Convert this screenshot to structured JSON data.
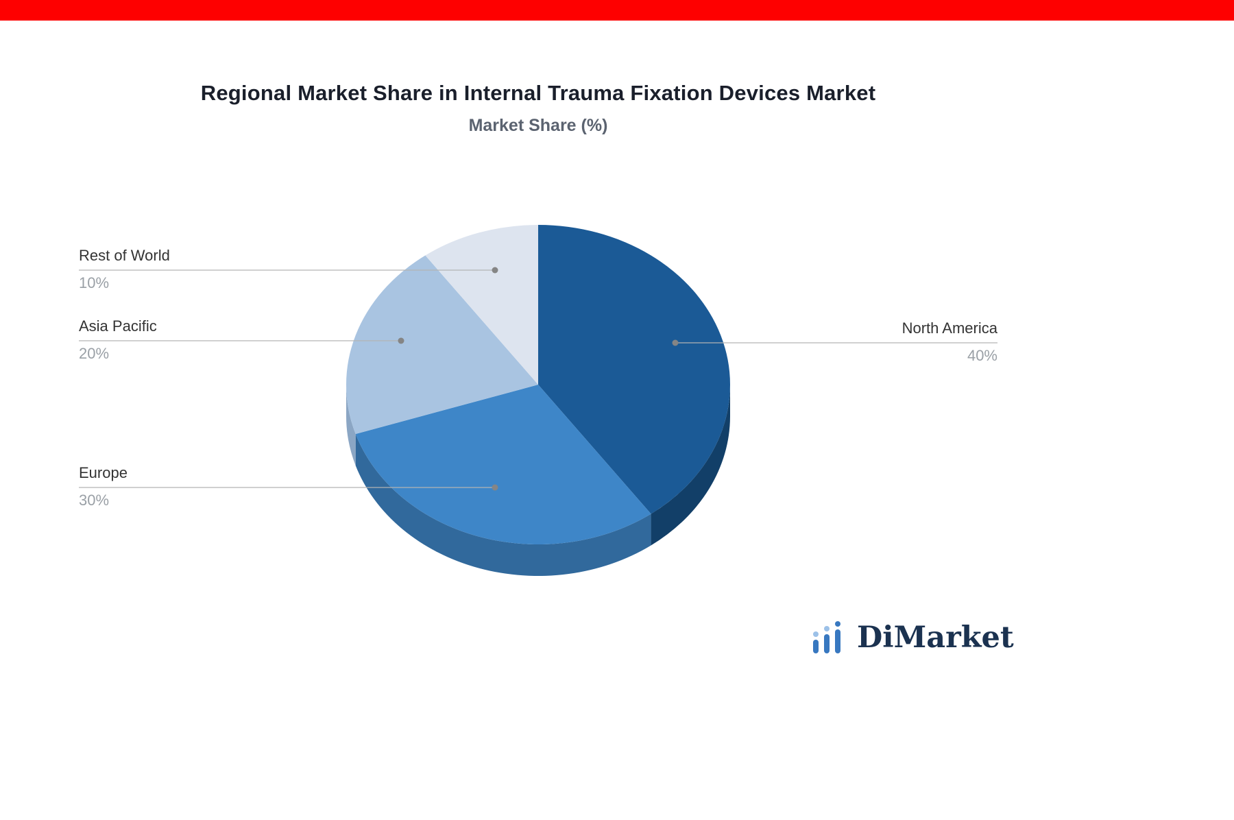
{
  "page": {
    "background": "#ffffff",
    "top_bar_color": "#fe0000"
  },
  "header": {
    "title": "Regional Market Share in Internal Trauma Fixation Devices Market",
    "subtitle": "Market Share (%)",
    "title_color": "#1a1f2b",
    "subtitle_color": "#5b6370"
  },
  "chart_data": {
    "type": "pie",
    "style": "3d",
    "title": "Regional Market Share in Internal Trauma Fixation Devices Market",
    "subtitle": "Market Share (%)",
    "unit": "%",
    "start_angle_deg": -90,
    "direction": "clockwise",
    "total": 100,
    "slices": [
      {
        "label": "North America",
        "value": 40,
        "value_label": "40%",
        "color": "#1b5a96",
        "side_color": "#123f68"
      },
      {
        "label": "Europe",
        "value": 30,
        "value_label": "30%",
        "color": "#3e86c8",
        "side_color": "#31699c"
      },
      {
        "label": "Asia Pacific",
        "value": 20,
        "value_label": "20%",
        "color": "#a9c4e1",
        "side_color": "#8ba6c4"
      },
      {
        "label": "Rest of World",
        "value": 10,
        "value_label": "10%",
        "color": "#dde4ef",
        "side_color": "#aab2c0"
      }
    ],
    "legend": "none",
    "labels_style": "callout-leader-lines",
    "label_color": "#333333",
    "value_color": "#9aa0a6",
    "leader_line_color": "#b3b3b3",
    "leader_dot_color": "#858585"
  },
  "branding": {
    "logo_text": "DiMarket",
    "logo_icon": "bar-chart-dots-icon",
    "logo_text_color": "#1b3250",
    "icon_bar_color": "#3878c0",
    "icon_dot_color": "#9cc1e8"
  }
}
